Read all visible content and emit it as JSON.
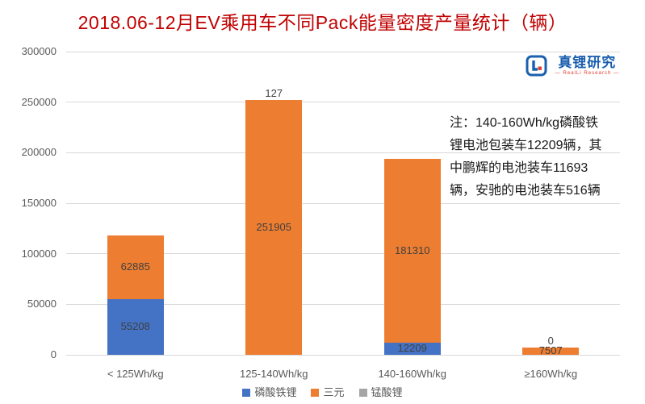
{
  "chart_data": {
    "type": "bar",
    "stacked": true,
    "title": "2018.06-12月EV乘用车不同Pack能量密度产量统计（辆）",
    "categories": [
      "< 125Wh/kg",
      "125-140Wh/kg",
      "140-160Wh/kg",
      "≥160Wh/kg"
    ],
    "series": [
      {
        "name": "磷酸铁锂",
        "color": "#4472C4",
        "label_position": "inside-center",
        "values": [
          55208,
          null,
          12209,
          null
        ]
      },
      {
        "name": "三元",
        "color": "#ED7D31",
        "label_position": "inside-center",
        "values": [
          62885,
          251905,
          181310,
          7507
        ]
      },
      {
        "name": "锰酸锂",
        "color": "#A5A5A5",
        "label_position": "outside-end",
        "values": [
          null,
          127,
          null,
          0
        ]
      }
    ],
    "ylabel": "",
    "xlabel": "",
    "ylim": [
      0,
      300000
    ],
    "ytick_step": 50000,
    "grid": true,
    "legend_position": "bottom"
  },
  "note_lines": [
    "注：140-160Wh/kg磷酸铁",
    "锂电池包装车12209辆，其",
    "中鹏辉的电池装车11693",
    "辆，安驰的电池装车516辆"
  ],
  "logo": {
    "brand": "真锂研究",
    "subtitle": "— RealLi Research —"
  },
  "colors": {
    "title": "#C00000",
    "axis_text": "#595959",
    "bar_label": "#404040",
    "gridline": "#D9D9D9",
    "note_text": "#1A1A1A",
    "brand_blue": "#1B5FAF",
    "brand_red": "#E03A2F"
  }
}
